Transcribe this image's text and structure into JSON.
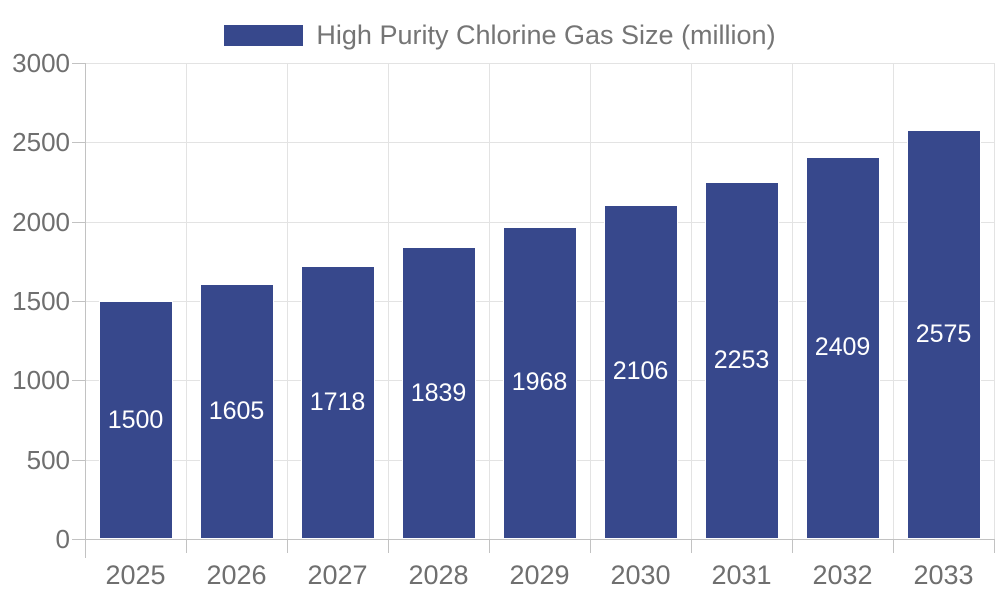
{
  "legend": {
    "label": "High Purity Chlorine Gas Size (million)"
  },
  "chart_data": {
    "type": "bar",
    "title": "",
    "categories": [
      "2025",
      "2026",
      "2027",
      "2028",
      "2029",
      "2030",
      "2031",
      "2032",
      "2033"
    ],
    "series": [
      {
        "name": "High Purity Chlorine Gas Size (million)",
        "values": [
          1500,
          1605,
          1718,
          1839,
          1968,
          2106,
          2253,
          2409,
          2575
        ]
      }
    ],
    "value_labels_shown": true,
    "xlabel": "",
    "ylabel": "",
    "ylim": [
      0,
      3000
    ],
    "yticks": [
      0,
      500,
      1000,
      1500,
      2000,
      2500,
      3000
    ],
    "grid": "horizontal-and-vertical",
    "legend_position": "top-center"
  },
  "colors": {
    "bar": "#37488c",
    "value_label": "#ffffff",
    "axis_text": "#6f6f6f",
    "legend_text": "#757575",
    "gridline": "#e3e3e3",
    "axis_line": "#c2c2c2",
    "background": "#ffffff"
  }
}
